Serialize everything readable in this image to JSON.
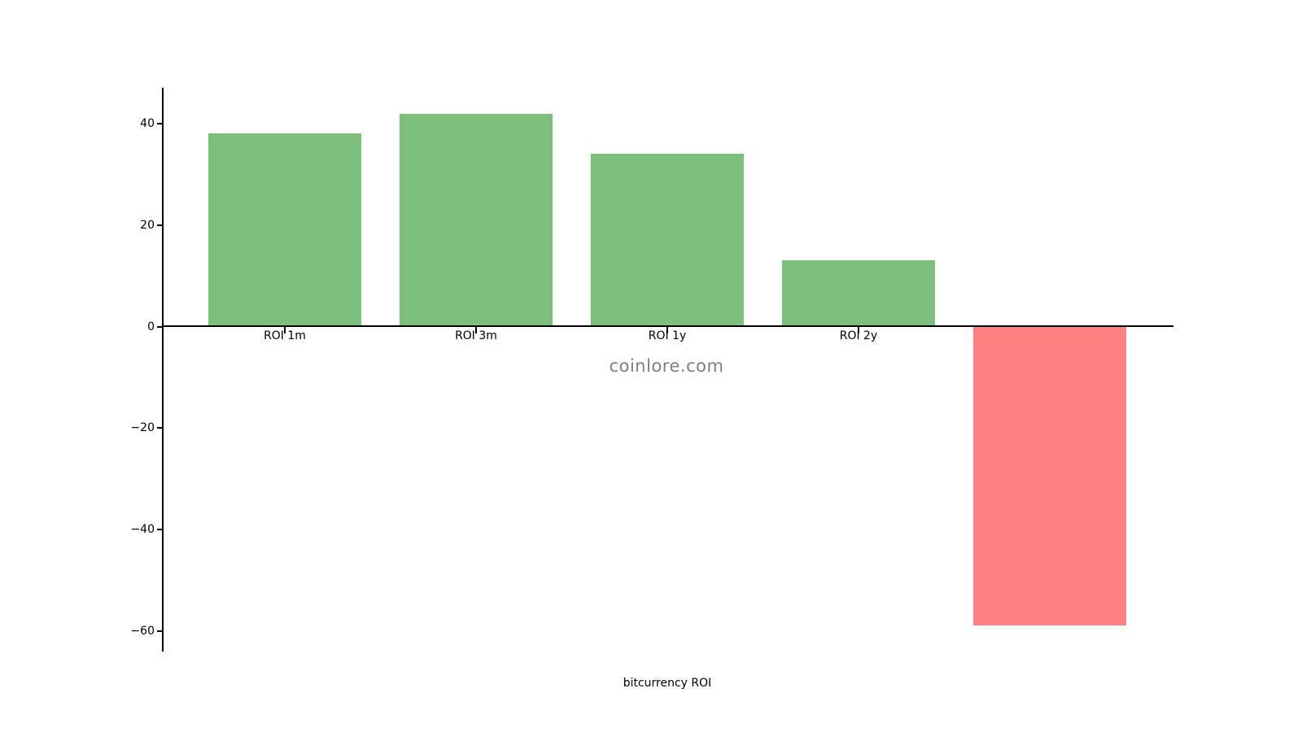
{
  "chart_data": {
    "type": "bar",
    "title": "",
    "xlabel": "bitcurrency ROI",
    "ylabel": "",
    "categories": [
      "ROI 1m",
      "ROI 3m",
      "ROI 1y",
      "ROI 2y",
      ""
    ],
    "values": [
      38,
      42,
      34,
      13,
      -59
    ],
    "series": [
      {
        "name": "ROI",
        "values": [
          38,
          42,
          34,
          13,
          -59
        ]
      }
    ],
    "ylim": [
      -64,
      47
    ],
    "yticks": [
      40,
      20,
      0,
      -20,
      -40,
      -60
    ],
    "ytick_labels": [
      "40",
      "20",
      "0",
      "−20",
      "−40",
      "−60"
    ],
    "grid": false,
    "legend_position": "none",
    "colors": {
      "positive_bar": "#7cbf7c",
      "negative_bar": "#ff8080",
      "axis": "#000000",
      "tick_label": "#000000"
    }
  },
  "watermark": {
    "text": "coinlore.com",
    "color": "#7f7f7f"
  }
}
